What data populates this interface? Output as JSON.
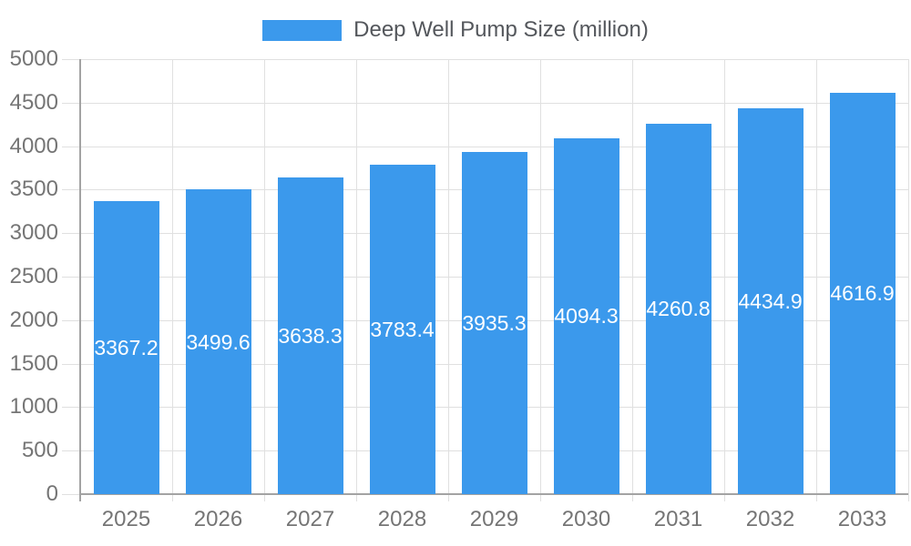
{
  "legend": {
    "label": "Deep Well Pump Size (million)"
  },
  "chart_data": {
    "type": "bar",
    "title": "Deep Well Pump Size (million)",
    "categories": [
      "2025",
      "2026",
      "2027",
      "2028",
      "2029",
      "2030",
      "2031",
      "2032",
      "2033"
    ],
    "series": [
      {
        "name": "Deep Well Pump Size (million)",
        "values": [
          3367.2,
          3499.6,
          3638.3,
          3783.4,
          3935.3,
          4094.3,
          4260.8,
          4434.9,
          4616.9
        ],
        "color": "#3B99EC"
      }
    ],
    "value_labels": [
      "3367.2",
      "3499.6",
      "3638.3",
      "3783.4",
      "3935.3",
      "4094.3",
      "4260.8",
      "4434.9",
      "4616.9"
    ],
    "xlabel": "",
    "ylabel": "",
    "ylim": [
      0,
      5000
    ],
    "yticks": [
      0,
      500,
      1000,
      1500,
      2000,
      2500,
      3000,
      3500,
      4000,
      4500,
      5000
    ],
    "grid": true,
    "legend_position": "top",
    "value_label_position": "inside-center"
  },
  "colors": {
    "bar": "#3B99EC",
    "value_label": "#FFFFFF",
    "grid_line": "#E0E0E0",
    "axis_line": "#A3A3A3",
    "axis_tick_label": "#757575",
    "legend_text": "#54575C",
    "background": "#FFFFFF"
  }
}
